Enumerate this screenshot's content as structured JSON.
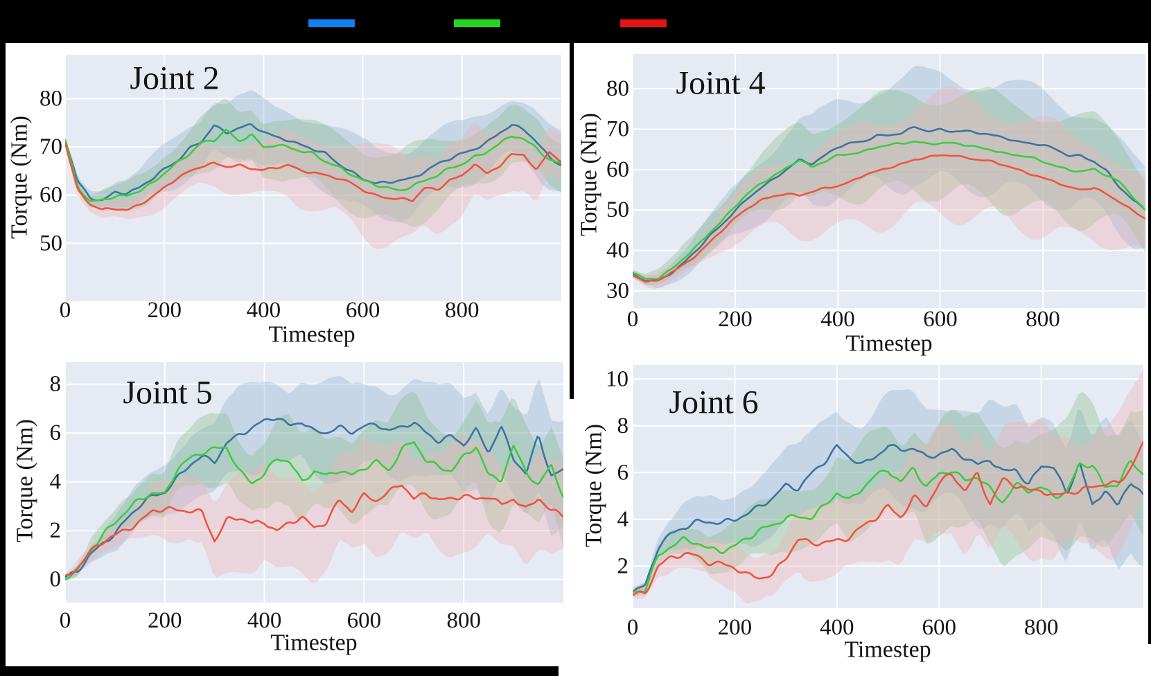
{
  "legend": {
    "items": [
      {
        "label": "",
        "color": "#0d80f2"
      },
      {
        "label": "",
        "color": "#21d821"
      },
      {
        "label": "",
        "color": "#e81212"
      }
    ]
  },
  "colors": {
    "canvas_bg": "#000000",
    "panel_bg": "#ffffff",
    "plot_bg": "#e5eaf3",
    "grid": "#ffffff",
    "text": "#151515",
    "band_alpha": 0.38
  },
  "chart_data": [
    {
      "type": "line",
      "title": "Joint 2",
      "xlabel": "Timestep",
      "ylabel": "Torque (Nm)",
      "xlim": [
        0,
        1000
      ],
      "ylim": [
        38,
        89.1
      ],
      "xticks": [
        0,
        200,
        400,
        600,
        800
      ],
      "yticks": [
        50,
        60,
        70,
        80
      ],
      "grid": true,
      "x_step": 25,
      "band_x_step": 100,
      "series": [
        {
          "name": "blue",
          "color": "#3b75a0",
          "band_color": "#93b5d6",
          "jitter": 0.35,
          "y": [
            71.5,
            63,
            59.5,
            59,
            60.5,
            60.3,
            61.5,
            63.5,
            65.5,
            67,
            69.5,
            71,
            74.5,
            73,
            74,
            74.5,
            73,
            72,
            71.5,
            70.5,
            69.5,
            68.5,
            66.5,
            65,
            63.5,
            62.5,
            62.5,
            63,
            63.5,
            65,
            66.5,
            67.5,
            68.5,
            69.5,
            71,
            73,
            74.5,
            73.5,
            71,
            68,
            66.3
          ],
          "band": [
            0.6,
            2.5,
            4.5,
            6,
            6,
            6.5,
            7,
            7,
            6,
            6.5,
            5.5
          ]
        },
        {
          "name": "green",
          "color": "#3dcc41",
          "band_color": "#8fbf8f",
          "jitter": 0.35,
          "y": [
            71.5,
            62,
            58.5,
            59,
            59.5,
            60,
            61,
            62.5,
            64.5,
            66.5,
            68.5,
            71,
            71.5,
            73.5,
            71,
            72.5,
            70,
            70.5,
            70,
            69,
            68.5,
            67,
            66,
            64.5,
            63,
            62,
            61.5,
            61,
            62,
            63,
            64,
            65.5,
            66.5,
            68,
            69,
            70.5,
            72.3,
            71.5,
            70,
            67.3,
            66.5
          ],
          "band": [
            0.6,
            2.2,
            4,
            5.5,
            6,
            6,
            7,
            7.5,
            6,
            5.5,
            5
          ]
        },
        {
          "name": "red",
          "color": "#ee5440",
          "band_color": "#f0b3b6",
          "jitter": 0.3,
          "y": [
            71,
            61,
            58,
            57,
            57.3,
            57,
            58,
            59.5,
            61.5,
            63.5,
            65,
            66,
            66.5,
            65.8,
            66.2,
            65.6,
            65.3,
            65.6,
            66.2,
            65,
            64.8,
            64.2,
            63.5,
            62.5,
            61,
            60,
            59.5,
            59.3,
            58.8,
            61.5,
            61,
            63.3,
            64,
            66.5,
            64.3,
            66,
            68.5,
            68.5,
            65,
            69,
            66.8
          ],
          "band": [
            0.6,
            2,
            3.5,
            4.5,
            5.5,
            7,
            9,
            9,
            7.5,
            6.5,
            5.5
          ]
        }
      ]
    },
    {
      "type": "line",
      "title": "Joint 4",
      "xlabel": "Timestep",
      "ylabel": "Torque (Nm)",
      "xlim": [
        0,
        1000
      ],
      "ylim": [
        25.7,
        88.6
      ],
      "xticks": [
        0,
        200,
        400,
        600,
        800
      ],
      "yticks": [
        30,
        40,
        50,
        60,
        70,
        80
      ],
      "grid": true,
      "x_step": 25,
      "band_x_step": 100,
      "series": [
        {
          "name": "blue",
          "color": "#3b75a0",
          "band_color": "#93b5d6",
          "jitter": 0.3,
          "y": [
            34,
            32.5,
            32.5,
            34.5,
            37,
            40,
            43.5,
            46.5,
            50,
            53,
            55.5,
            57.5,
            60,
            62.5,
            61.5,
            63.5,
            65.5,
            66.5,
            67,
            68.5,
            68.5,
            69,
            70.5,
            69.5,
            70,
            69.5,
            69.5,
            69,
            68.5,
            68,
            67,
            66.5,
            66,
            65,
            63.5,
            63.5,
            62,
            59.5,
            55.5,
            52.5,
            50.3
          ],
          "band": [
            0.8,
            3,
            6,
            9,
            11,
            12.5,
            13,
            13,
            12.5,
            12,
            9
          ]
        },
        {
          "name": "green",
          "color": "#3dcc41",
          "band_color": "#8fbf8f",
          "jitter": 0.3,
          "y": [
            34.5,
            33,
            33.2,
            35.2,
            38,
            41,
            44.5,
            47.5,
            51,
            54,
            56.5,
            58.5,
            60.5,
            62.5,
            60.5,
            62,
            63.5,
            64,
            64.5,
            65.5,
            66,
            66.5,
            67,
            66.5,
            66.5,
            66.5,
            66,
            65.5,
            65,
            64,
            63.5,
            63,
            62,
            61,
            60,
            59.5,
            60,
            58.5,
            57,
            53.5,
            49.8
          ],
          "band": [
            0.8,
            3,
            5.5,
            8,
            10,
            11.5,
            12,
            12.5,
            12.5,
            12,
            9
          ]
        },
        {
          "name": "red",
          "color": "#ee5440",
          "band_color": "#f0b3b6",
          "jitter": 0.25,
          "y": [
            34,
            32.3,
            32.5,
            34.5,
            36.5,
            39,
            42,
            45,
            48,
            50.5,
            52.5,
            53.5,
            54,
            53.5,
            54.5,
            55.5,
            56,
            57,
            58.5,
            59.5,
            60.5,
            61.5,
            62.5,
            63,
            63.5,
            63.5,
            63,
            62.5,
            62,
            61,
            60,
            59,
            58,
            57,
            55.5,
            55,
            55.5,
            54,
            52,
            49.8,
            47.8
          ],
          "band": [
            0.8,
            2.5,
            5.5,
            9,
            11,
            13,
            14,
            14,
            13,
            12,
            9
          ]
        }
      ]
    },
    {
      "type": "line",
      "title": "Joint 5",
      "xlabel": "Timestep",
      "ylabel": "Torque (Nm)",
      "xlim": [
        0,
        1000
      ],
      "ylim": [
        -0.95,
        8.9
      ],
      "xticks": [
        0,
        200,
        400,
        600,
        800
      ],
      "yticks": [
        0,
        2,
        4,
        6,
        8
      ],
      "grid": true,
      "x_step": 25,
      "band_x_step": 100,
      "series": [
        {
          "name": "blue",
          "color": "#3b75a0",
          "band_color": "#93b5d6",
          "jitter": 0.12,
          "y": [
            0.05,
            0.3,
            1.0,
            1.5,
            1.9,
            2.5,
            3.0,
            3.4,
            3.6,
            4.2,
            4.7,
            5.0,
            4.8,
            5.6,
            6.0,
            6.2,
            6.5,
            6.6,
            6.3,
            6.5,
            6.1,
            6.0,
            6.2,
            6.0,
            6.3,
            6.4,
            6.1,
            6.2,
            6.4,
            6.0,
            5.7,
            5.9,
            5.5,
            6.1,
            5.2,
            6.3,
            5.0,
            4.3,
            5.9,
            4.2,
            4.5
          ],
          "band": [
            0.1,
            0.6,
            1.1,
            1.5,
            1.7,
            1.8,
            1.8,
            1.8,
            1.9,
            2.0,
            2.0
          ]
        },
        {
          "name": "green",
          "color": "#3dcc41",
          "band_color": "#8fbf8f",
          "jitter": 0.14,
          "y": [
            0.05,
            0.4,
            1.2,
            1.8,
            2.3,
            2.8,
            3.3,
            3.6,
            3.5,
            4.5,
            4.9,
            5.2,
            5.4,
            5.45,
            4.4,
            3.9,
            4.3,
            5.0,
            4.9,
            4.0,
            4.4,
            4.2,
            4.5,
            4.3,
            4.6,
            4.8,
            4.4,
            5.3,
            5.7,
            4.9,
            4.6,
            4.4,
            5.0,
            5.5,
            4.3,
            4.1,
            5.4,
            4.4,
            3.8,
            4.8,
            3.4
          ],
          "band": [
            0.1,
            0.5,
            1.0,
            1.3,
            1.5,
            1.6,
            1.7,
            1.8,
            1.8,
            1.9,
            1.9
          ]
        },
        {
          "name": "red",
          "color": "#ee5440",
          "band_color": "#f0b3b6",
          "jitter": 0.14,
          "y": [
            0.1,
            0.5,
            1.1,
            1.5,
            1.8,
            2.1,
            2.4,
            2.8,
            2.85,
            2.8,
            2.85,
            2.8,
            1.6,
            2.4,
            2.5,
            2.3,
            2.4,
            2.0,
            2.3,
            2.5,
            2.1,
            2.4,
            3.3,
            2.8,
            3.4,
            3.2,
            3.6,
            4.0,
            3.3,
            3.5,
            3.2,
            3.3,
            3.5,
            3.3,
            3.4,
            3.0,
            3.3,
            2.9,
            3.4,
            2.8,
            2.6
          ],
          "band": [
            0.1,
            0.5,
            1.0,
            1.8,
            1.9,
            1.9,
            2.0,
            2.0,
            2.0,
            1.9,
            1.8
          ]
        }
      ]
    },
    {
      "type": "line",
      "title": "Joint 6",
      "xlabel": "Timestep",
      "ylabel": "Torque (Nm)",
      "xlim": [
        0,
        1000
      ],
      "ylim": [
        0.2,
        10.6
      ],
      "xticks": [
        0,
        200,
        400,
        600,
        800
      ],
      "yticks": [
        2,
        4,
        6,
        8,
        10
      ],
      "grid": true,
      "x_step": 25,
      "band_x_step": 100,
      "series": [
        {
          "name": "blue",
          "color": "#3b75a0",
          "band_color": "#93b5d6",
          "jitter": 0.15,
          "y": [
            0.9,
            1.1,
            2.8,
            3.4,
            3.7,
            3.9,
            3.85,
            3.8,
            4.0,
            4.3,
            4.6,
            4.9,
            5.4,
            5.3,
            6.0,
            6.5,
            7.1,
            6.6,
            6.3,
            6.7,
            7.2,
            7.0,
            7.0,
            6.6,
            6.8,
            7.0,
            6.7,
            6.3,
            6.5,
            6.0,
            6.2,
            5.5,
            6.3,
            6.2,
            5.0,
            6.5,
            4.6,
            5.3,
            4.5,
            5.6,
            5.0
          ],
          "band": [
            0.15,
            0.8,
            1.2,
            1.5,
            1.8,
            2.0,
            2.2,
            2.3,
            2.4,
            2.5,
            2.6
          ]
        },
        {
          "name": "green",
          "color": "#3dcc41",
          "band_color": "#8fbf8f",
          "jitter": 0.16,
          "y": [
            0.85,
            1.0,
            2.5,
            2.9,
            3.1,
            2.95,
            2.7,
            2.7,
            2.9,
            3.2,
            3.5,
            3.7,
            4.1,
            4.15,
            4.1,
            4.5,
            5.1,
            4.8,
            5.4,
            5.9,
            6.1,
            5.5,
            6.2,
            5.4,
            6.0,
            6.1,
            5.6,
            5.8,
            5.3,
            4.8,
            5.5,
            5.2,
            5.3,
            5.0,
            5.2,
            6.4,
            6.3,
            5.3,
            5.5,
            6.5,
            6.0
          ],
          "band": [
            0.15,
            0.6,
            1.0,
            1.2,
            1.5,
            1.8,
            2.2,
            2.4,
            2.5,
            2.6,
            2.7
          ]
        },
        {
          "name": "red",
          "color": "#ee5440",
          "band_color": "#f0b3b6",
          "jitter": 0.16,
          "y": [
            0.8,
            0.9,
            2.0,
            2.3,
            2.5,
            2.45,
            2.2,
            2.1,
            1.9,
            1.55,
            1.5,
            1.7,
            2.4,
            3.15,
            2.9,
            3.0,
            3.1,
            3.3,
            3.7,
            4.0,
            4.5,
            4.1,
            5.0,
            4.6,
            5.5,
            5.9,
            5.2,
            6.0,
            4.7,
            5.7,
            5.4,
            5.2,
            5.3,
            5.0,
            5.2,
            5.1,
            5.4,
            5.5,
            5.6,
            6.2,
            7.2
          ],
          "band": [
            0.15,
            0.6,
            0.9,
            1.2,
            1.5,
            1.8,
            2.2,
            2.4,
            2.5,
            2.6,
            2.7
          ]
        }
      ]
    }
  ]
}
